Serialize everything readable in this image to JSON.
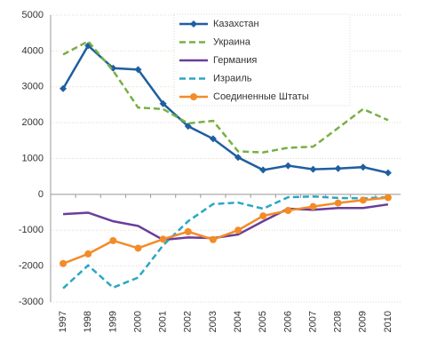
{
  "chart_data": {
    "type": "line",
    "categories": [
      "1997",
      "1998",
      "1999",
      "2000",
      "2001",
      "2002",
      "2003",
      "2004",
      "2005",
      "2006",
      "2007",
      "2208",
      "2009",
      "2010"
    ],
    "series": [
      {
        "name": "Казахстан",
        "color": "#1f5f9f",
        "marker": "diamond",
        "dash": "solid",
        "values": [
          2950,
          4150,
          3520,
          3480,
          2530,
          1900,
          1550,
          1030,
          680,
          800,
          700,
          720,
          760,
          600
        ]
      },
      {
        "name": "Украина",
        "color": "#77b043",
        "marker": "none",
        "dash": "dashed",
        "values": [
          3900,
          4270,
          3450,
          2420,
          2380,
          1980,
          2050,
          1200,
          1170,
          1300,
          1330,
          1850,
          2380,
          2070
        ]
      },
      {
        "name": "Германия",
        "color": "#6a3d9a",
        "marker": "none",
        "dash": "solid",
        "values": [
          -550,
          -510,
          -750,
          -880,
          -1270,
          -1200,
          -1220,
          -1120,
          -750,
          -400,
          -430,
          -380,
          -380,
          -280
        ]
      },
      {
        "name": "Израиль",
        "color": "#2aa7c4",
        "marker": "none",
        "dash": "dashed",
        "values": [
          -2620,
          -1980,
          -2600,
          -2320,
          -1420,
          -750,
          -270,
          -230,
          -400,
          -80,
          -60,
          -100,
          -110,
          -80
        ]
      },
      {
        "name": "Соединенные Штаты",
        "color": "#f28c28",
        "marker": "circle",
        "dash": "solid",
        "values": [
          -1930,
          -1660,
          -1290,
          -1500,
          -1250,
          -1040,
          -1260,
          -1000,
          -600,
          -450,
          -340,
          -240,
          -160,
          -90
        ]
      }
    ],
    "ylim": [
      -3000,
      5000
    ],
    "yticks": [
      -3000,
      -2000,
      -1000,
      0,
      1000,
      2000,
      3000,
      4000,
      5000
    ],
    "grid": true,
    "legend": "top-right"
  }
}
